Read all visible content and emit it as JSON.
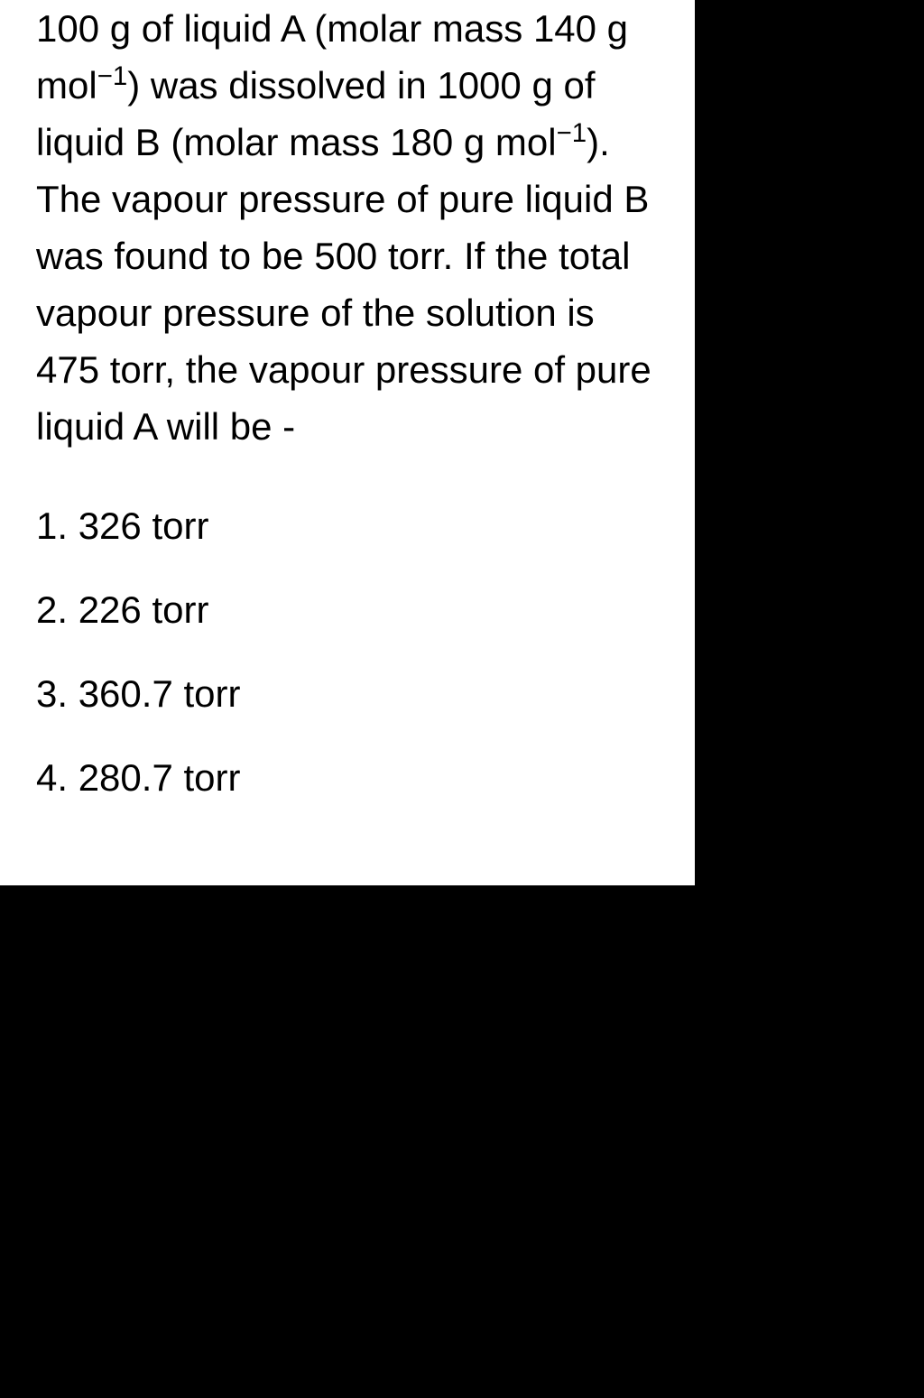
{
  "question": {
    "part1": "100 g of liquid A (molar mass 140 g mol",
    "sup1": "−1",
    "part2": ") was dissolved in 1000 g of liquid B (molar mass 180 g mol",
    "sup2": "−1",
    "part3": "). The vapour pressure of pure liquid B was found to be 500 torr. If the total vapour pressure of the solution is 475 torr, the vapour pressure of pure liquid A will be -"
  },
  "options": [
    {
      "number": "1.",
      "text": "326 torr"
    },
    {
      "number": "2.",
      "text": "226 torr"
    },
    {
      "number": "3.",
      "text": "360.7 torr"
    },
    {
      "number": "4.",
      "text": "280.7 torr"
    }
  ]
}
